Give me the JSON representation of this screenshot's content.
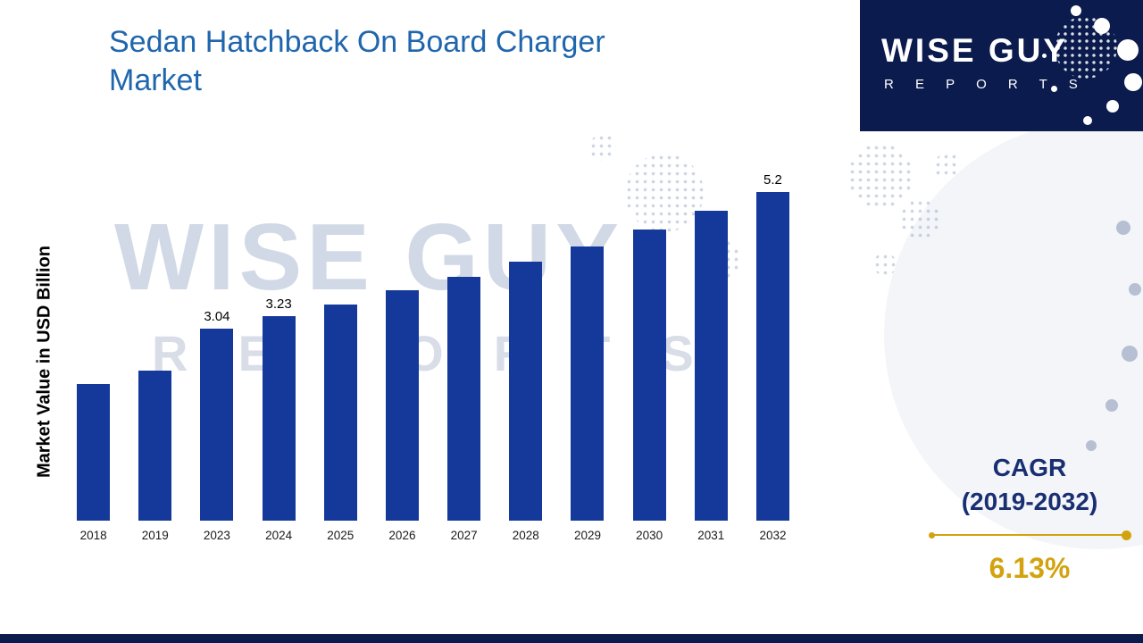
{
  "page": {
    "title_line1": "Sedan Hatchback On Board Charger",
    "title_line2": "Market"
  },
  "logo": {
    "brand_line1": "WISE GUY",
    "brand_line2": "R E P O R T S"
  },
  "watermark": {
    "line1": "WISE GUY",
    "line2": "REPORTS"
  },
  "cagr": {
    "label": "CAGR",
    "range": "(2019-2032)",
    "value": "6.13%"
  },
  "colors": {
    "title_blue": "#1f66ad",
    "navy": "#0b1b4e",
    "gold": "#d2a30f",
    "bar_blue": "#15399b"
  },
  "chart_data": {
    "type": "bar",
    "title": "Sedan Hatchback On Board Charger Market",
    "xlabel": "",
    "ylabel": "Market Value in USD Billion",
    "categories": [
      "2018",
      "2019",
      "2023",
      "2024",
      "2025",
      "2026",
      "2027",
      "2028",
      "2029",
      "2030",
      "2031",
      "2032"
    ],
    "values": [
      2.16,
      2.37,
      3.04,
      3.23,
      3.42,
      3.64,
      3.86,
      4.1,
      4.33,
      4.6,
      4.9,
      5.2
    ],
    "shown_labels": [
      "",
      "",
      "3.04",
      "3.23",
      "",
      "",
      "",
      "",
      "",
      "",
      "",
      "5.2"
    ],
    "ylim": [
      0,
      5.5
    ],
    "grid": false,
    "legend": null,
    "bar_color": "#15399b"
  }
}
